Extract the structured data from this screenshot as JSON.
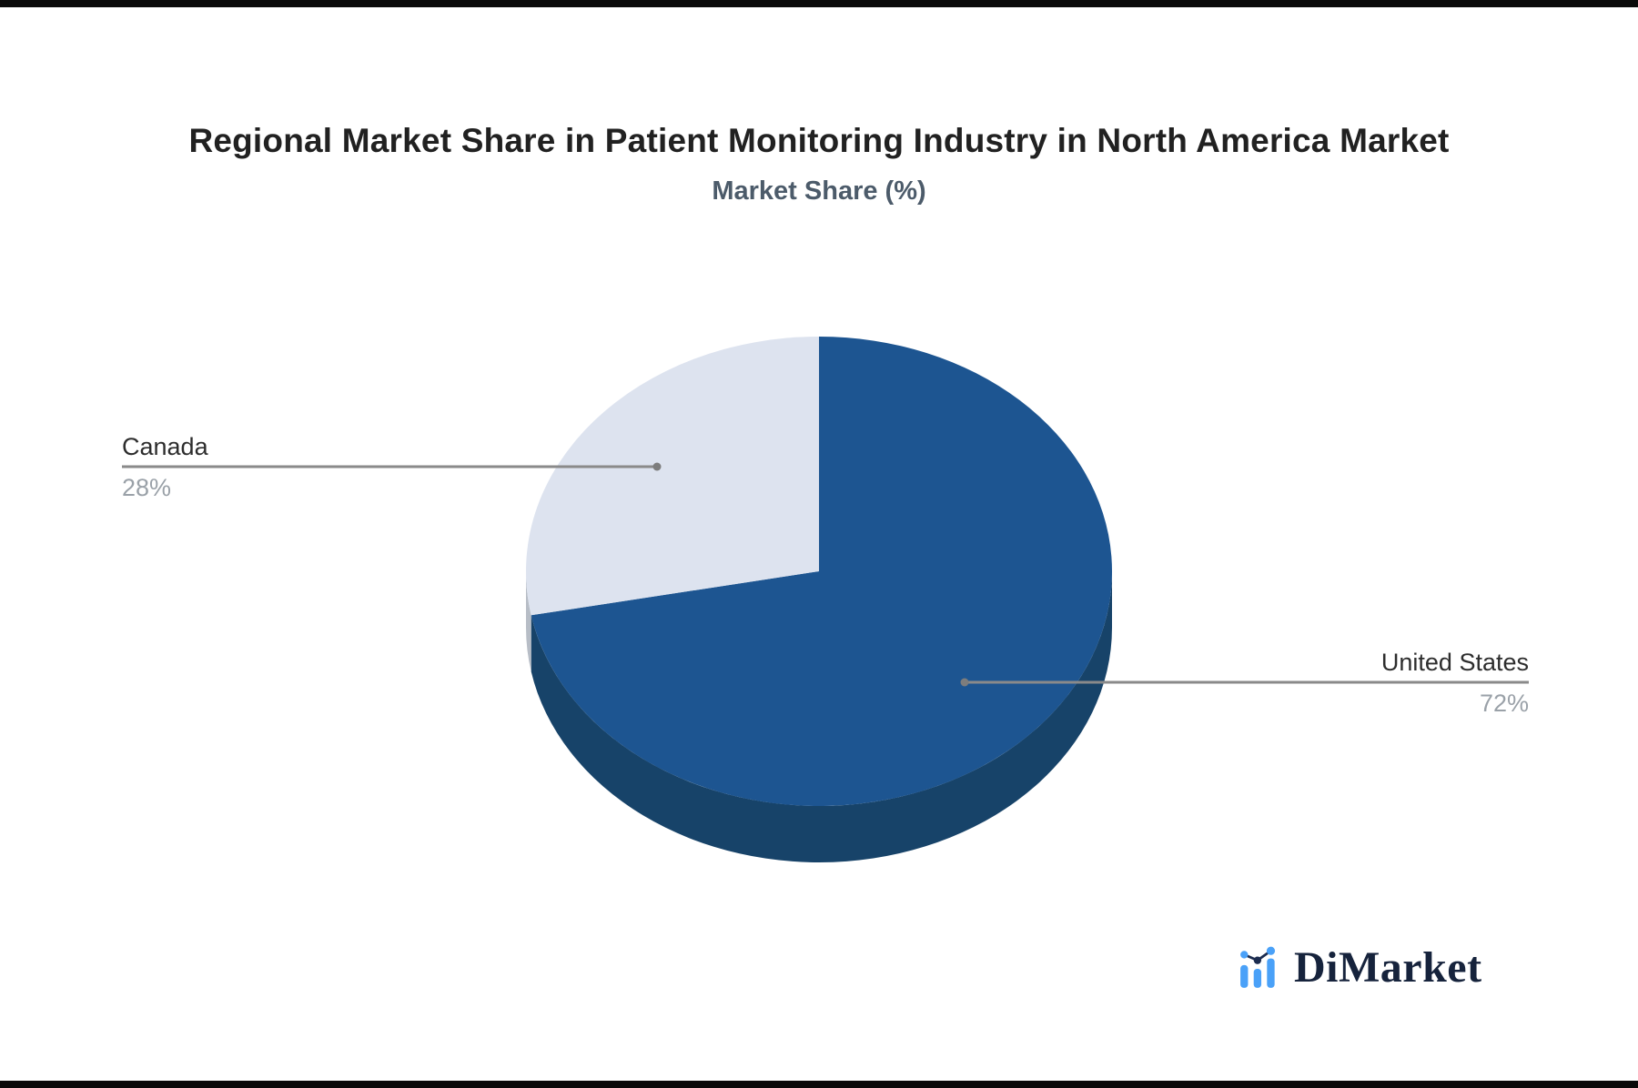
{
  "chart": {
    "title": "Regional Market Share in Patient Monitoring Industry in North America Market",
    "subtitle": "Market Share (%)"
  },
  "chart_data": {
    "type": "pie",
    "style": "3d",
    "title": "Regional Market Share in Patient Monitoring Industry in North America Market",
    "subtitle": "Market Share (%)",
    "unit": "%",
    "start_angle_deg": 0,
    "direction": "clockwise",
    "legend_position": "none",
    "label_style": "leader-lines",
    "categories": [
      "United States",
      "Canada"
    ],
    "values": [
      72,
      28
    ],
    "slices": [
      {
        "label": "United States",
        "value": 72,
        "display": "72%",
        "color": "#1d5591",
        "side_color": "#174369"
      },
      {
        "label": "Canada",
        "value": 28,
        "display": "28%",
        "color": "#dde3ef",
        "side_color": "#b7bdc6"
      }
    ]
  },
  "leader": {
    "line_color": "#8a8a8a",
    "dot_color": "#7d7d7d",
    "label_color": "#2d2d2d",
    "pct_color": "#9aa1a8"
  },
  "logo": {
    "text": "DiMarket",
    "icon": "bar-chart-trend-icon",
    "bar_color": "#4aa1f8",
    "line_color": "#1c2c4f"
  },
  "colors": {
    "background": "#ffffff",
    "title": "#212121",
    "subtitle": "#4c5b6a",
    "us_slice": "#1d5591",
    "us_slice_side": "#174369",
    "canada_slice": "#dde3ef",
    "canada_slice_side": "#b7bdc6",
    "edge_bar": "#0a0a0a"
  }
}
